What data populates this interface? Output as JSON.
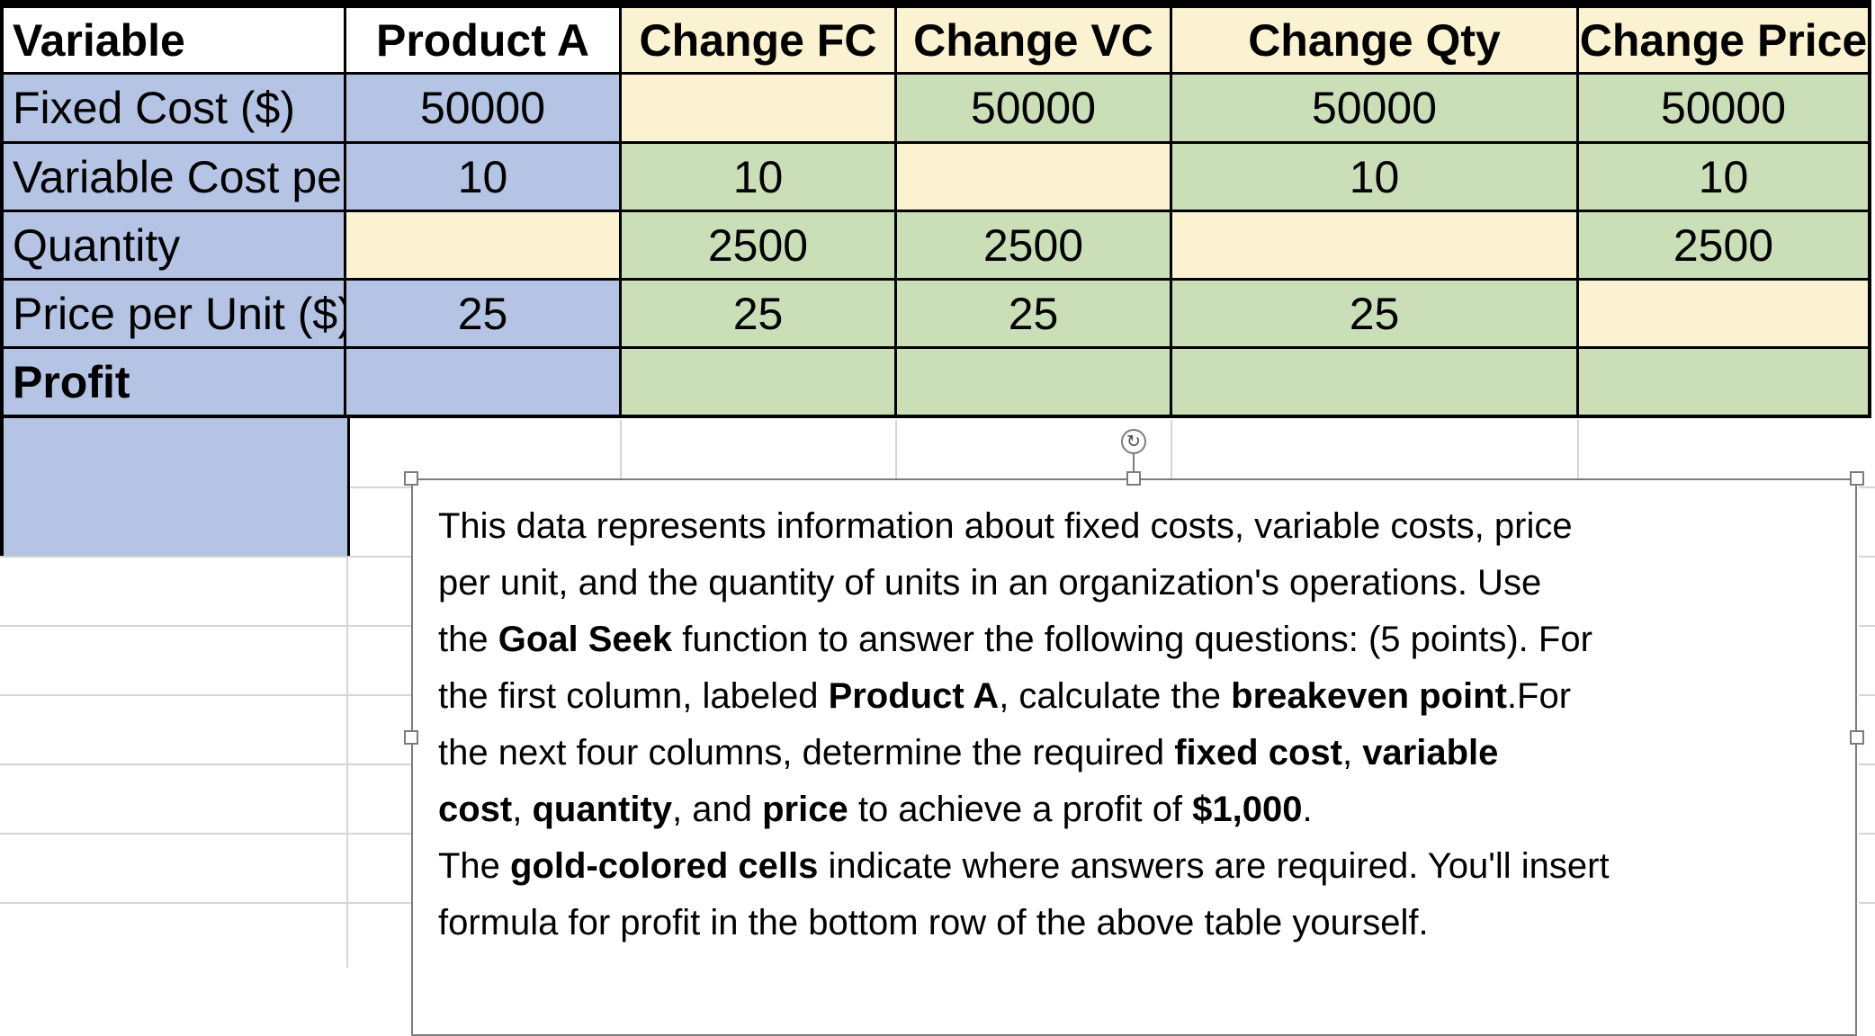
{
  "colors": {
    "cell_blue": "#b5c4e4",
    "cell_gold": "#faf2d0",
    "cell_green": "#cadeb8",
    "table_border": "#000000",
    "gridline": "#d5d5d5",
    "textbox_border": "#7c7c7c"
  },
  "icons": {
    "rotate": "↻"
  },
  "table": {
    "header": [
      "Variable",
      "Product A",
      "Change FC",
      "Change VC",
      "Change Qty",
      "Change Price"
    ],
    "rows": [
      {
        "label": "Fixed Cost ($)",
        "cells": [
          "50000",
          "",
          "50000",
          "50000",
          "50000"
        ]
      },
      {
        "label": "Variable Cost per Unit ($)",
        "cells": [
          "10",
          "10",
          "",
          "10",
          "10"
        ]
      },
      {
        "label": "Quantity",
        "cells": [
          "",
          "2500",
          "2500",
          "",
          "2500"
        ]
      },
      {
        "label": "Price per Unit ($)",
        "cells": [
          "25",
          "25",
          "25",
          "25",
          ""
        ]
      },
      {
        "label": "Profit",
        "cells": [
          "",
          "",
          "",
          "",
          ""
        ]
      }
    ]
  },
  "textbox": {
    "lines": [
      [
        {
          "t": "This data represents information about fixed costs, variable costs, price",
          "b": false
        }
      ],
      [
        {
          "t": "per unit, and the quantity of units in an organization's operations. Use",
          "b": false
        }
      ],
      [
        {
          "t": "the ",
          "b": false
        },
        {
          "t": "Goal Seek",
          "b": true
        },
        {
          "t": " function to answer the following questions: (5 points). For",
          "b": false
        }
      ],
      [
        {
          "t": "the first column, labeled ",
          "b": false
        },
        {
          "t": "Product A",
          "b": true
        },
        {
          "t": ", calculate the ",
          "b": false
        },
        {
          "t": "breakeven point",
          "b": true
        },
        {
          "t": ".For",
          "b": false
        }
      ],
      [
        {
          "t": "the next four columns, determine the required ",
          "b": false
        },
        {
          "t": "fixed cost",
          "b": true
        },
        {
          "t": ", ",
          "b": false
        },
        {
          "t": "variable",
          "b": true
        }
      ],
      [
        {
          "t": "cost",
          "b": true
        },
        {
          "t": ", ",
          "b": false
        },
        {
          "t": "quantity",
          "b": true
        },
        {
          "t": ", and ",
          "b": false
        },
        {
          "t": "price",
          "b": true
        },
        {
          "t": " to achieve a profit of ",
          "b": false
        },
        {
          "t": "$1,000",
          "b": true
        },
        {
          "t": ".",
          "b": false
        }
      ],
      [
        {
          "t": "The ",
          "b": false
        },
        {
          "t": "gold-colored cells",
          "b": true
        },
        {
          "t": " indicate where answers are required. You'll insert",
          "b": false
        }
      ],
      [
        {
          "t": "formula for profit in the bottom row of the above table yourself.",
          "b": false
        }
      ]
    ]
  }
}
